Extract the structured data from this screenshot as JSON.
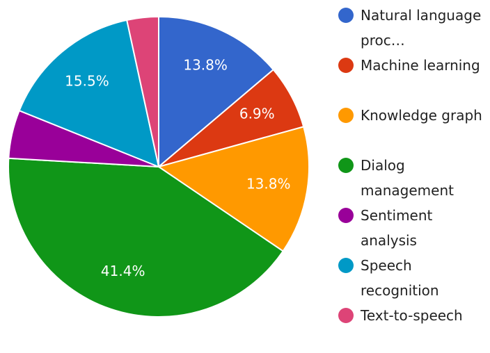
{
  "chart_data": {
    "type": "pie",
    "categories": [
      "Natural language proc…",
      "Machine learning",
      "Knowledge graph",
      "Dialog management",
      "Sentiment analysis",
      "Speech recognition",
      "Text-to-speech"
    ],
    "values": [
      13.8,
      6.9,
      13.8,
      41.4,
      5.2,
      15.5,
      3.4
    ],
    "value_labels": [
      "13.8%",
      "6.9%",
      "13.8%",
      "41.4%",
      null,
      "15.5%",
      null
    ],
    "colors": [
      "#3366cc",
      "#dc3912",
      "#ff9900",
      "#109618",
      "#990099",
      "#0099c6",
      "#dd4477"
    ],
    "legend": "right"
  }
}
